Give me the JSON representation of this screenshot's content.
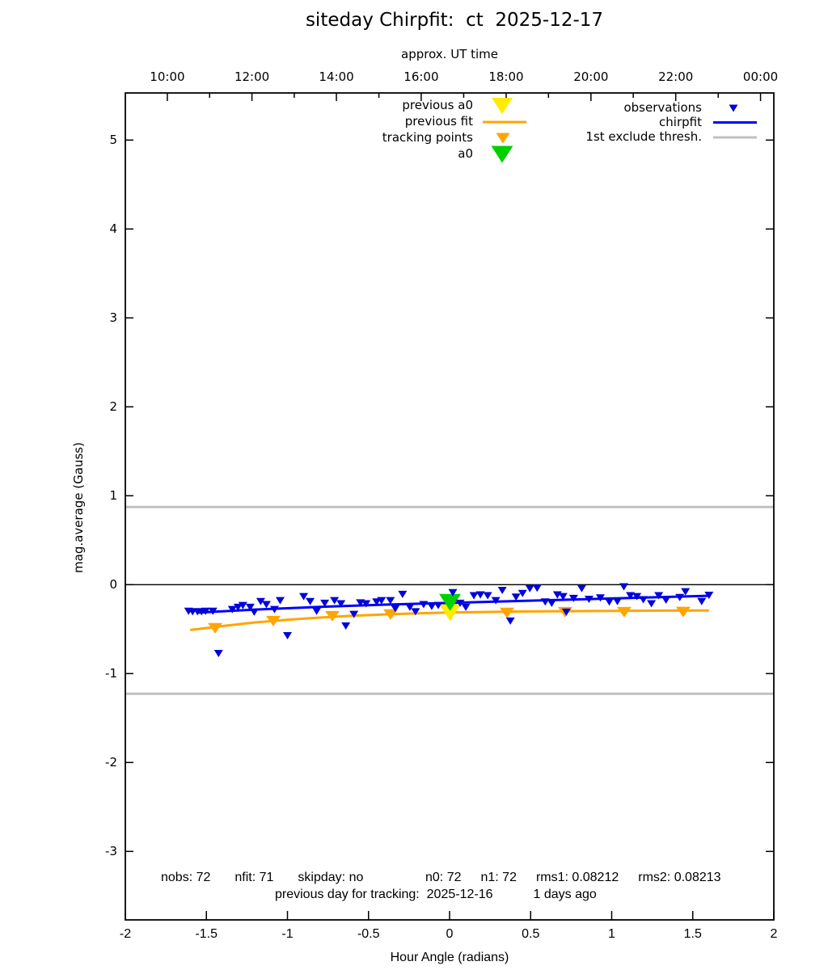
{
  "colors": {
    "observations": "#0000dd",
    "chirpfit": "#0000ff",
    "previous_fit": "#ffa500",
    "tracking_points": "#ffa500",
    "previous_a0": "#ffec00",
    "a0": "#00d000",
    "threshold": "#c0c0c0",
    "axis": "#000000"
  },
  "chart_data": {
    "type": "scatter",
    "title": "siteday Chirpfit:  ct  2025-12-17",
    "x2label": "approx. UT time",
    "xlabel": "Hour Angle (radians)",
    "ylabel": "mag.average (Gauss)",
    "xlim": [
      -2,
      2
    ],
    "ylim": [
      -3.77,
      5.53
    ],
    "grid": false,
    "x_ticks": [
      {
        "v": -2,
        "label": "-2"
      },
      {
        "v": -1.5,
        "label": "-1.5"
      },
      {
        "v": -1,
        "label": "-1"
      },
      {
        "v": -0.5,
        "label": "-0.5"
      },
      {
        "v": 0,
        "label": "0"
      },
      {
        "v": 0.5,
        "label": "0.5"
      },
      {
        "v": 1,
        "label": "1"
      },
      {
        "v": 1.5,
        "label": "1.5"
      },
      {
        "v": 2,
        "label": "2"
      }
    ],
    "y_ticks": [
      {
        "v": -3,
        "label": "-3"
      },
      {
        "v": -2,
        "label": "-2"
      },
      {
        "v": -1,
        "label": "-1"
      },
      {
        "v": 0,
        "label": "0"
      },
      {
        "v": 1,
        "label": "1"
      },
      {
        "v": 2,
        "label": "2"
      },
      {
        "v": 3,
        "label": "3"
      },
      {
        "v": 4,
        "label": "4"
      },
      {
        "v": 5,
        "label": "5"
      }
    ],
    "time_ticks_major": [
      {
        "label": "10:00",
        "x": -1.741
      },
      {
        "label": "12:00",
        "x": -1.219
      },
      {
        "label": "14:00",
        "x": -0.698
      },
      {
        "label": "16:00",
        "x": -0.175
      },
      {
        "label": "18:00",
        "x": 0.349
      },
      {
        "label": "20:00",
        "x": 0.872
      },
      {
        "label": "22:00",
        "x": 1.395
      },
      {
        "label": "00:00",
        "x": 1.918
      }
    ],
    "time_ticks_minor": [
      -1.48,
      -0.958,
      -0.436,
      0.087,
      0.61,
      1.133,
      1.657
    ],
    "series": {
      "observations": [
        [
          -1.61,
          -0.3
        ],
        [
          -1.585,
          -0.305
        ],
        [
          -1.555,
          -0.305
        ],
        [
          -1.53,
          -0.305
        ],
        [
          -1.505,
          -0.3
        ],
        [
          -1.46,
          -0.3
        ],
        [
          -1.425,
          -0.775
        ],
        [
          -1.34,
          -0.28
        ],
        [
          -1.305,
          -0.255
        ],
        [
          -1.275,
          -0.235
        ],
        [
          -1.23,
          -0.255
        ],
        [
          -1.205,
          -0.31
        ],
        [
          -1.165,
          -0.19
        ],
        [
          -1.13,
          -0.225
        ],
        [
          -1.08,
          -0.28
        ],
        [
          -1.045,
          -0.18
        ],
        [
          -1.0,
          -0.575
        ],
        [
          -0.9,
          -0.135
        ],
        [
          -0.86,
          -0.19
        ],
        [
          -0.82,
          -0.3
        ],
        [
          -0.77,
          -0.21
        ],
        [
          -0.71,
          -0.18
        ],
        [
          -0.67,
          -0.215
        ],
        [
          -0.64,
          -0.465
        ],
        [
          -0.59,
          -0.335
        ],
        [
          -0.55,
          -0.205
        ],
        [
          -0.515,
          -0.215
        ],
        [
          -0.45,
          -0.195
        ],
        [
          -0.42,
          -0.18
        ],
        [
          -0.365,
          -0.18
        ],
        [
          -0.335,
          -0.27
        ],
        [
          -0.29,
          -0.11
        ],
        [
          -0.245,
          -0.255
        ],
        [
          -0.21,
          -0.305
        ],
        [
          -0.16,
          -0.225
        ],
        [
          -0.11,
          -0.245
        ],
        [
          -0.07,
          -0.235
        ],
        [
          0.02,
          -0.09
        ],
        [
          0.065,
          -0.21
        ],
        [
          0.1,
          -0.255
        ],
        [
          0.15,
          -0.125
        ],
        [
          0.19,
          -0.115
        ],
        [
          0.235,
          -0.125
        ],
        [
          0.285,
          -0.18
        ],
        [
          0.325,
          -0.065
        ],
        [
          0.375,
          -0.41
        ],
        [
          0.41,
          -0.14
        ],
        [
          0.45,
          -0.1
        ],
        [
          0.495,
          -0.045
        ],
        [
          0.54,
          -0.04
        ],
        [
          0.59,
          -0.195
        ],
        [
          0.63,
          -0.21
        ],
        [
          0.665,
          -0.115
        ],
        [
          0.7,
          -0.135
        ],
        [
          0.72,
          -0.31
        ],
        [
          0.765,
          -0.155
        ],
        [
          0.815,
          -0.045
        ],
        [
          0.86,
          -0.165
        ],
        [
          0.93,
          -0.15
        ],
        [
          0.985,
          -0.195
        ],
        [
          1.035,
          -0.19
        ],
        [
          1.075,
          -0.025
        ],
        [
          1.115,
          -0.125
        ],
        [
          1.155,
          -0.135
        ],
        [
          1.195,
          -0.17
        ],
        [
          1.245,
          -0.215
        ],
        [
          1.29,
          -0.125
        ],
        [
          1.335,
          -0.175
        ],
        [
          1.42,
          -0.145
        ],
        [
          1.455,
          -0.08
        ],
        [
          1.555,
          -0.19
        ],
        [
          1.6,
          -0.12
        ]
      ],
      "tracking_points": [
        [
          -1.446,
          -0.49
        ],
        [
          -1.087,
          -0.41
        ],
        [
          -0.723,
          -0.355
        ],
        [
          -0.364,
          -0.336
        ],
        [
          0.003,
          -0.31
        ],
        [
          0.354,
          -0.318
        ],
        [
          0.713,
          -0.31
        ],
        [
          1.077,
          -0.31
        ],
        [
          1.441,
          -0.308
        ]
      ],
      "previous_a0": [
        [
          0.003,
          -0.315
        ]
      ],
      "a0": [
        [
          0.003,
          -0.2
        ]
      ],
      "chirpfit_line": [
        [
          -1.56,
          -0.315
        ],
        [
          -1.2,
          -0.28
        ],
        [
          -0.8,
          -0.25
        ],
        [
          -0.4,
          -0.225
        ],
        [
          0,
          -0.205
        ],
        [
          0.4,
          -0.185
        ],
        [
          0.8,
          -0.165
        ],
        [
          1.2,
          -0.145
        ],
        [
          1.61,
          -0.125
        ]
      ],
      "previous_fit_line": [
        [
          -1.6,
          -0.51
        ],
        [
          -1.4,
          -0.465
        ],
        [
          -1.2,
          -0.425
        ],
        [
          -1.0,
          -0.395
        ],
        [
          -0.8,
          -0.37
        ],
        [
          -0.6,
          -0.35
        ],
        [
          -0.4,
          -0.335
        ],
        [
          -0.2,
          -0.322
        ],
        [
          0,
          -0.313
        ],
        [
          0.3,
          -0.305
        ],
        [
          0.6,
          -0.3
        ],
        [
          1.0,
          -0.295
        ],
        [
          1.3,
          -0.292
        ],
        [
          1.6,
          -0.29
        ]
      ],
      "exclude_thresholds": [
        0.873,
        -1.227
      ]
    },
    "legend": {
      "left": [
        {
          "label": "previous a0",
          "marker": "triangle-large",
          "color_key": "previous_a0"
        },
        {
          "label": "previous fit",
          "marker": "line",
          "color_key": "previous_fit"
        },
        {
          "label": "tracking points",
          "marker": "triangle-small",
          "color_key": "tracking_points"
        },
        {
          "label": "a0",
          "marker": "triangle-large",
          "color_key": "a0"
        }
      ],
      "right": [
        {
          "label": "observations",
          "marker": "triangle-tiny",
          "color_key": "observations"
        },
        {
          "label": "chirpfit",
          "marker": "line",
          "color_key": "chirpfit"
        },
        {
          "label": "1st exclude thresh.",
          "marker": "line",
          "color_key": "threshold"
        }
      ]
    }
  },
  "stats": {
    "nobs": "nobs: 72",
    "nfit": "nfit: 71",
    "skipday": "skipday: no",
    "n0": "n0: 72",
    "n1": "n1: 72",
    "rms1": "rms1: 0.08212",
    "rms2": "rms2: 0.08213",
    "prev_day": "previous day for tracking:  2025-12-16",
    "days_ago": "1 days ago"
  }
}
